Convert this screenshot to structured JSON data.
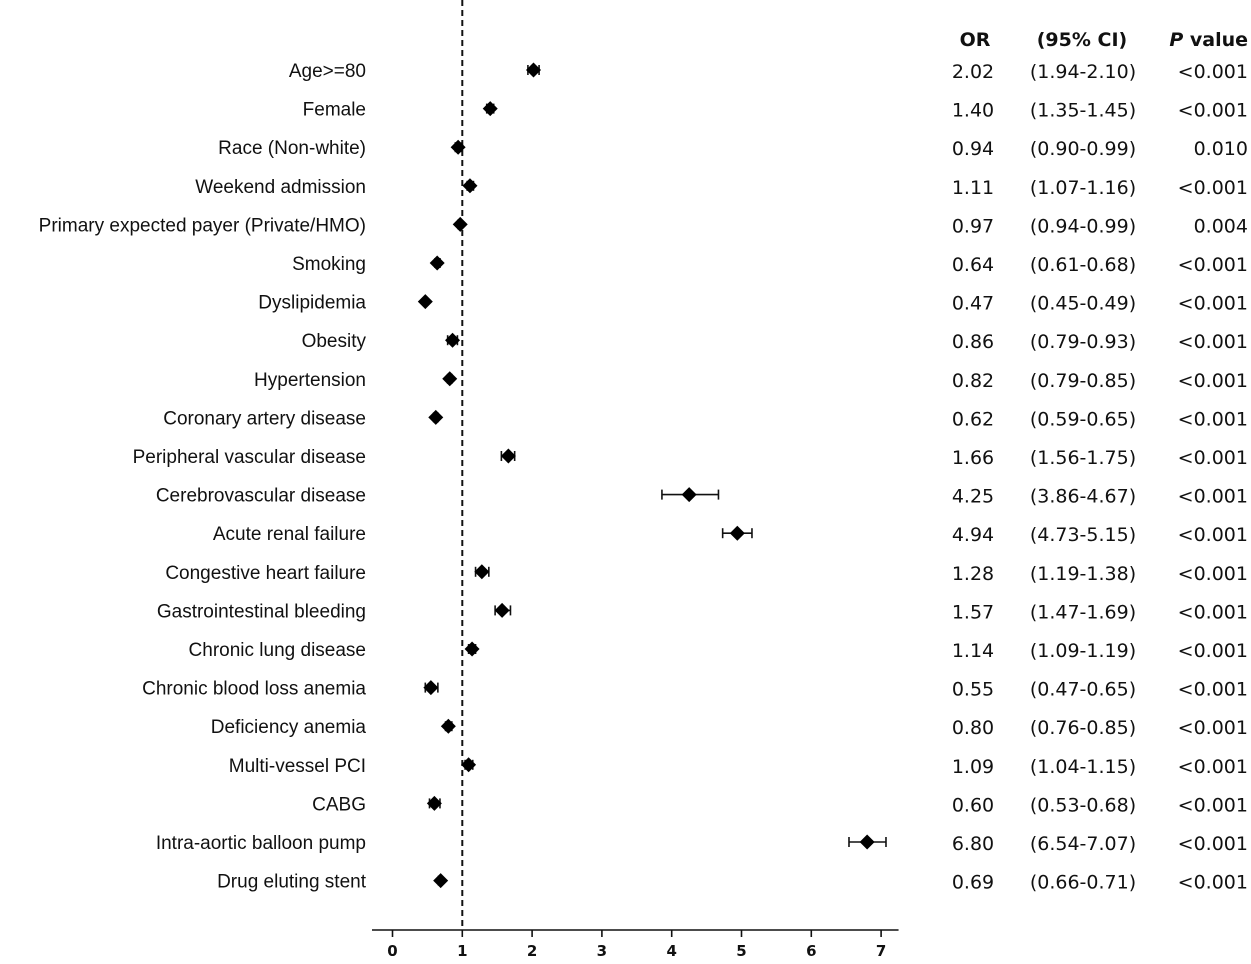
{
  "chart_data": {
    "type": "forest",
    "title": "",
    "xlabel": "",
    "ylabel": "",
    "xlim": [
      0,
      7.25
    ],
    "x_ticks": [
      "0",
      "1",
      "2",
      "3",
      "4",
      "5",
      "6",
      "7"
    ],
    "reference_line": 1,
    "columns": {
      "or": "OR",
      "ci": "(95% CI)",
      "p_italic": "P",
      "p_rest": " value"
    },
    "rows": [
      {
        "label": "Age>=80",
        "or": 2.02,
        "lo": 1.94,
        "hi": 2.1,
        "or_text": "2.02",
        "ci_text": "(1.94-2.10)",
        "p_text": "<0.001"
      },
      {
        "label": "Female",
        "or": 1.4,
        "lo": 1.35,
        "hi": 1.45,
        "or_text": "1.40",
        "ci_text": "(1.35-1.45)",
        "p_text": "<0.001"
      },
      {
        "label": "Race (Non-white)",
        "or": 0.94,
        "lo": 0.9,
        "hi": 0.99,
        "or_text": "0.94",
        "ci_text": "(0.90-0.99)",
        "p_text": "0.010"
      },
      {
        "label": "Weekend admission",
        "or": 1.11,
        "lo": 1.07,
        "hi": 1.16,
        "or_text": "1.11",
        "ci_text": "(1.07-1.16)",
        "p_text": "<0.001"
      },
      {
        "label": "Primary expected payer (Private/HMO)",
        "or": 0.97,
        "lo": 0.94,
        "hi": 0.99,
        "or_text": "0.97",
        "ci_text": "(0.94-0.99)",
        "p_text": "0.004"
      },
      {
        "label": "Smoking",
        "or": 0.64,
        "lo": 0.61,
        "hi": 0.68,
        "or_text": "0.64",
        "ci_text": "(0.61-0.68)",
        "p_text": "<0.001"
      },
      {
        "label": "Dyslipidemia",
        "or": 0.47,
        "lo": 0.45,
        "hi": 0.49,
        "or_text": "0.47",
        "ci_text": "(0.45-0.49)",
        "p_text": "<0.001"
      },
      {
        "label": "Obesity",
        "or": 0.86,
        "lo": 0.79,
        "hi": 0.93,
        "or_text": "0.86",
        "ci_text": "(0.79-0.93)",
        "p_text": "<0.001"
      },
      {
        "label": "Hypertension",
        "or": 0.82,
        "lo": 0.79,
        "hi": 0.85,
        "or_text": "0.82",
        "ci_text": "(0.79-0.85)",
        "p_text": "<0.001"
      },
      {
        "label": "Coronary artery disease",
        "or": 0.62,
        "lo": 0.59,
        "hi": 0.65,
        "or_text": "0.62",
        "ci_text": "(0.59-0.65)",
        "p_text": "<0.001"
      },
      {
        "label": "Peripheral vascular disease",
        "or": 1.66,
        "lo": 1.56,
        "hi": 1.75,
        "or_text": "1.66",
        "ci_text": "(1.56-1.75)",
        "p_text": "<0.001"
      },
      {
        "label": "Cerebrovascular disease",
        "or": 4.25,
        "lo": 3.86,
        "hi": 4.67,
        "or_text": "4.25",
        "ci_text": "(3.86-4.67)",
        "p_text": "<0.001"
      },
      {
        "label": "Acute renal failure",
        "or": 4.94,
        "lo": 4.73,
        "hi": 5.15,
        "or_text": "4.94",
        "ci_text": "(4.73-5.15)",
        "p_text": "<0.001"
      },
      {
        "label": "Congestive heart failure",
        "or": 1.28,
        "lo": 1.19,
        "hi": 1.38,
        "or_text": "1.28",
        "ci_text": "(1.19-1.38)",
        "p_text": "<0.001"
      },
      {
        "label": "Gastrointestinal bleeding",
        "or": 1.57,
        "lo": 1.47,
        "hi": 1.69,
        "or_text": "1.57",
        "ci_text": "(1.47-1.69)",
        "p_text": "<0.001"
      },
      {
        "label": "Chronic lung disease",
        "or": 1.14,
        "lo": 1.09,
        "hi": 1.19,
        "or_text": "1.14",
        "ci_text": "(1.09-1.19)",
        "p_text": "<0.001"
      },
      {
        "label": "Chronic blood loss anemia",
        "or": 0.55,
        "lo": 0.47,
        "hi": 0.65,
        "or_text": "0.55",
        "ci_text": "(0.47-0.65)",
        "p_text": "<0.001"
      },
      {
        "label": "Deficiency anemia",
        "or": 0.8,
        "lo": 0.76,
        "hi": 0.85,
        "or_text": "0.80",
        "ci_text": "(0.76-0.85)",
        "p_text": "<0.001"
      },
      {
        "label": "Multi-vessel PCI",
        "or": 1.09,
        "lo": 1.04,
        "hi": 1.15,
        "or_text": "1.09",
        "ci_text": "(1.04-1.15)",
        "p_text": "<0.001"
      },
      {
        "label": "CABG",
        "or": 0.6,
        "lo": 0.53,
        "hi": 0.68,
        "or_text": "0.60",
        "ci_text": "(0.53-0.68)",
        "p_text": "<0.001"
      },
      {
        "label": "Intra-aortic balloon pump",
        "or": 6.8,
        "lo": 6.54,
        "hi": 7.07,
        "or_text": "6.80",
        "ci_text": "(6.54-7.07)",
        "p_text": "<0.001"
      },
      {
        "label": "Drug eluting stent",
        "or": 0.69,
        "lo": 0.66,
        "hi": 0.71,
        "or_text": "0.69",
        "ci_text": "(0.66-0.71)",
        "p_text": "<0.001"
      }
    ]
  }
}
